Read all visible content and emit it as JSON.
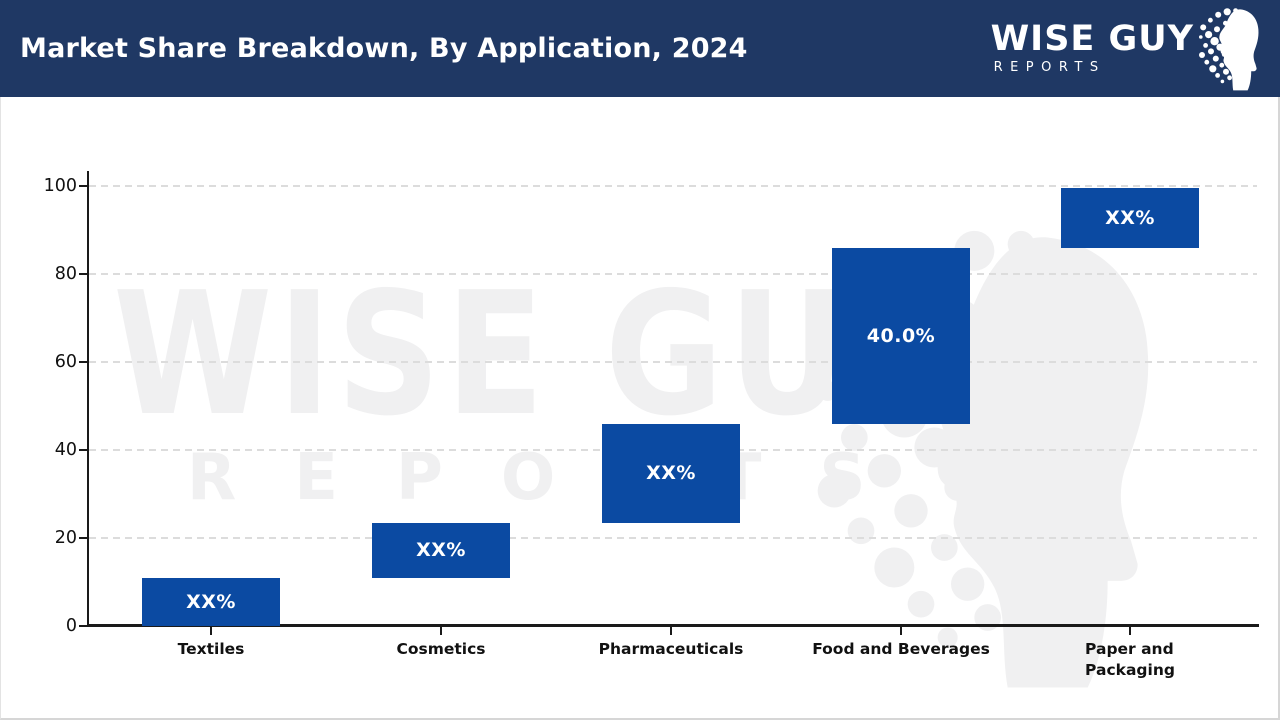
{
  "header": {
    "title": "Market Share Breakdown, By Application, 2024",
    "bg_color": "#1f3864",
    "logo": {
      "line1": "WISE GUY",
      "line2": "REPORTS",
      "icon": "wise-guy-face"
    }
  },
  "watermark": {
    "line1": "WISE GUY",
    "line2": "REPORTS",
    "color": "#f0f0f1"
  },
  "chart_data": {
    "type": "bar",
    "subtype": "floating-waterfall",
    "title": "Market Share Breakdown, By Application, 2024",
    "categories": [
      "Textiles",
      "Cosmetics",
      "Pharmaceuticals",
      "Food and Beverages",
      "Paper and\nPackaging"
    ],
    "segments": [
      [
        0,
        11
      ],
      [
        11,
        23.5
      ],
      [
        23.5,
        46
      ],
      [
        46,
        86
      ],
      [
        86,
        99.5
      ]
    ],
    "values": [
      11,
      12.5,
      22.5,
      40,
      13.5
    ],
    "bar_labels": [
      "XX%",
      "XX%",
      "XX%",
      "40.0%",
      "XX%"
    ],
    "bar_color": "#0b4aa2",
    "xlabel": "",
    "ylabel": "",
    "ylim": [
      0,
      100
    ],
    "yticks": [
      0,
      20,
      40,
      60,
      80,
      100
    ],
    "grid": "horizontal-dashed",
    "grid_color": "#dcdcdc",
    "legend": "none"
  }
}
